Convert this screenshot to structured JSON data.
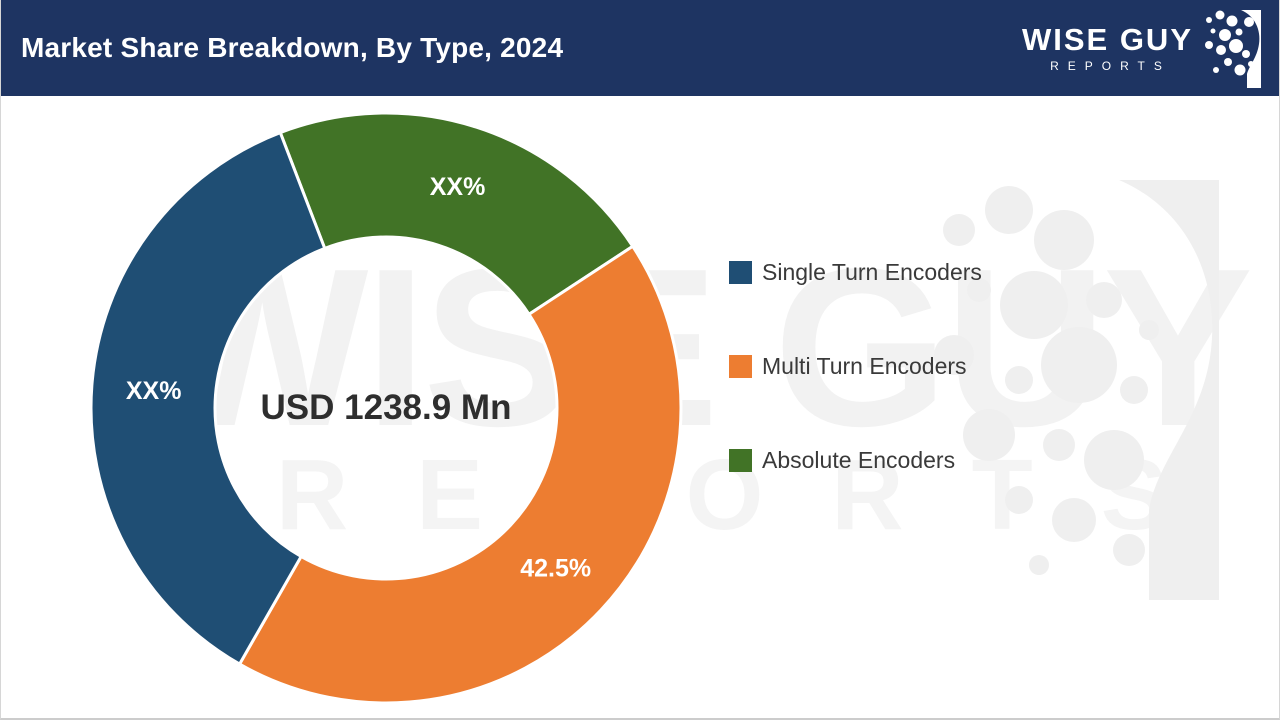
{
  "header": {
    "title": "Market Share Breakdown, By Type, 2024",
    "bg_color": "#1e3462",
    "brand": {
      "line1": "WISE GUY",
      "line2": "REPORTS"
    }
  },
  "chart_data": {
    "type": "pie",
    "subtype": "donut",
    "title": "Market Share Breakdown, By Type, 2024",
    "center_label": "USD 1238.9 Mn",
    "start_angle_deg": -21,
    "inner_radius_ratio": 0.58,
    "legend_position": "right",
    "slices": [
      {
        "name": "Absolute Encoders",
        "display_label": "XX%",
        "share_pct": 21.6,
        "color": "#417326"
      },
      {
        "name": "Multi Turn Encoders",
        "display_label": "42.5%",
        "share_pct": 42.5,
        "color": "#ed7d31"
      },
      {
        "name": "Single Turn Encoders",
        "display_label": "XX%",
        "share_pct": 35.9,
        "color": "#1f4e74"
      }
    ],
    "legend": [
      {
        "label": "Single Turn Encoders",
        "color": "#1f4e74"
      },
      {
        "label": "Multi Turn Encoders",
        "color": "#ed7d31"
      },
      {
        "label": "Absolute Encoders",
        "color": "#417326"
      }
    ]
  },
  "watermark": {
    "line1": "WISE GUY",
    "line2": "REPORTS"
  },
  "icons": {
    "brand_face": "dot-face-profile-icon"
  }
}
